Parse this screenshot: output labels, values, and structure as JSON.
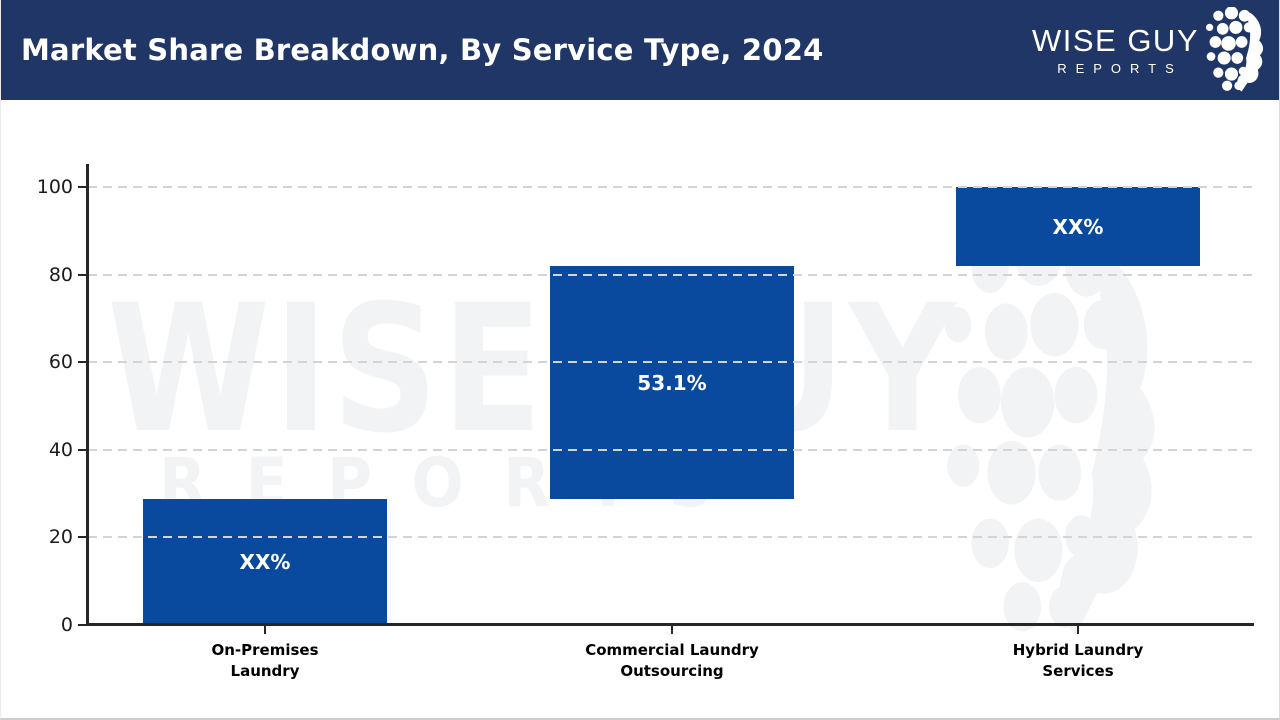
{
  "header": {
    "title": "Market Share Breakdown, By Service Type, 2024",
    "bg_color": "#1f3666",
    "logo": {
      "name": "WISE GUY",
      "tagline": "REPORTS"
    }
  },
  "watermark": {
    "line1": "WISE GUY",
    "line2": "REPORTS"
  },
  "chart_data": {
    "type": "bar",
    "subtype": "floating-waterfall",
    "title": "Market Share Breakdown, By Service Type, 2024",
    "categories": [
      [
        "On-Premises",
        "Laundry"
      ],
      [
        "Commercial Laundry",
        "Outsourcing"
      ],
      [
        "Hybrid Laundry",
        "Services"
      ]
    ],
    "segments": [
      {
        "category": "On-Premises Laundry",
        "start": 0,
        "end": 28.8,
        "label": "XX%"
      },
      {
        "category": "Commercial Laundry Outsourcing",
        "start": 28.8,
        "end": 81.9,
        "label": "53.1%"
      },
      {
        "category": "Hybrid Laundry Services",
        "start": 81.9,
        "end": 100,
        "label": "XX%"
      }
    ],
    "ylabel": "",
    "xlabel": "",
    "ylim": [
      0,
      105
    ],
    "yticks": [
      0,
      20,
      40,
      60,
      80,
      100
    ],
    "bar_color": "#0a4a9e",
    "bar_label_color": "#ffffff",
    "grid": {
      "on": true,
      "style": "dashed",
      "color": "#d4d4d4",
      "orientation": "horizontal",
      "above_bars": true
    },
    "legend": "none"
  }
}
